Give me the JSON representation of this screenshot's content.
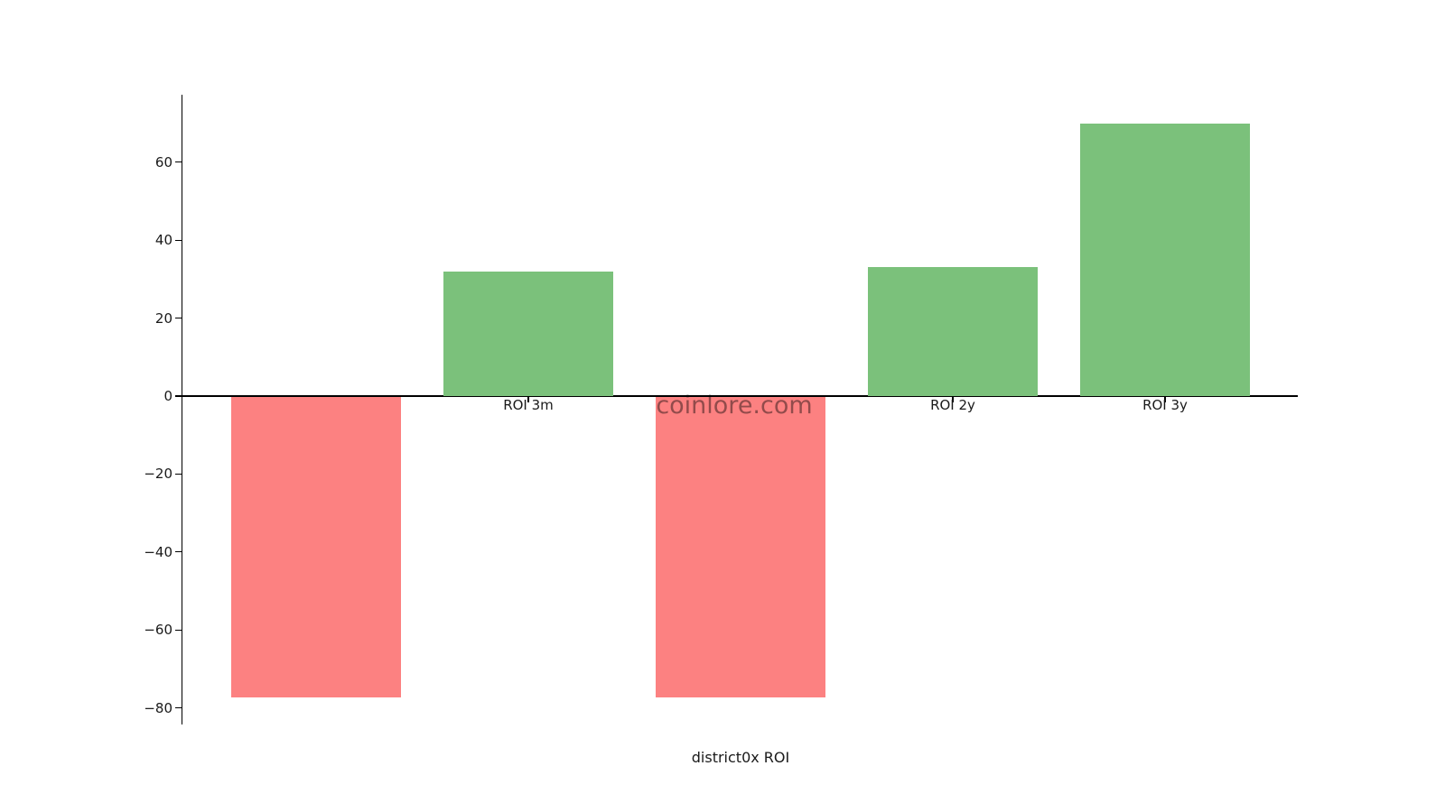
{
  "watermark": {
    "text": "coinlore.com"
  },
  "chart_data": {
    "type": "bar",
    "title": "",
    "xlabel": "district0x ROI",
    "ylabel": "",
    "categories": [
      "",
      "ROI 3m",
      "",
      "ROI 2y",
      "ROI 3y"
    ],
    "values": [
      -77,
      32,
      -77,
      33,
      70
    ],
    "bar_colors": [
      "#fc8181",
      "#7bc17b",
      "#fc8181",
      "#7bc17b",
      "#7bc17b"
    ],
    "color_meaning": {
      "positive": "#7bc17b",
      "negative": "#fc8181"
    },
    "yticks": [
      60,
      40,
      20,
      0,
      -20,
      -40,
      -60,
      -80
    ],
    "ylim": [
      -84.4,
      77.4
    ],
    "grid": false,
    "legend": null,
    "note": "tick labels of the two negative bars are occluded by the bars themselves"
  }
}
